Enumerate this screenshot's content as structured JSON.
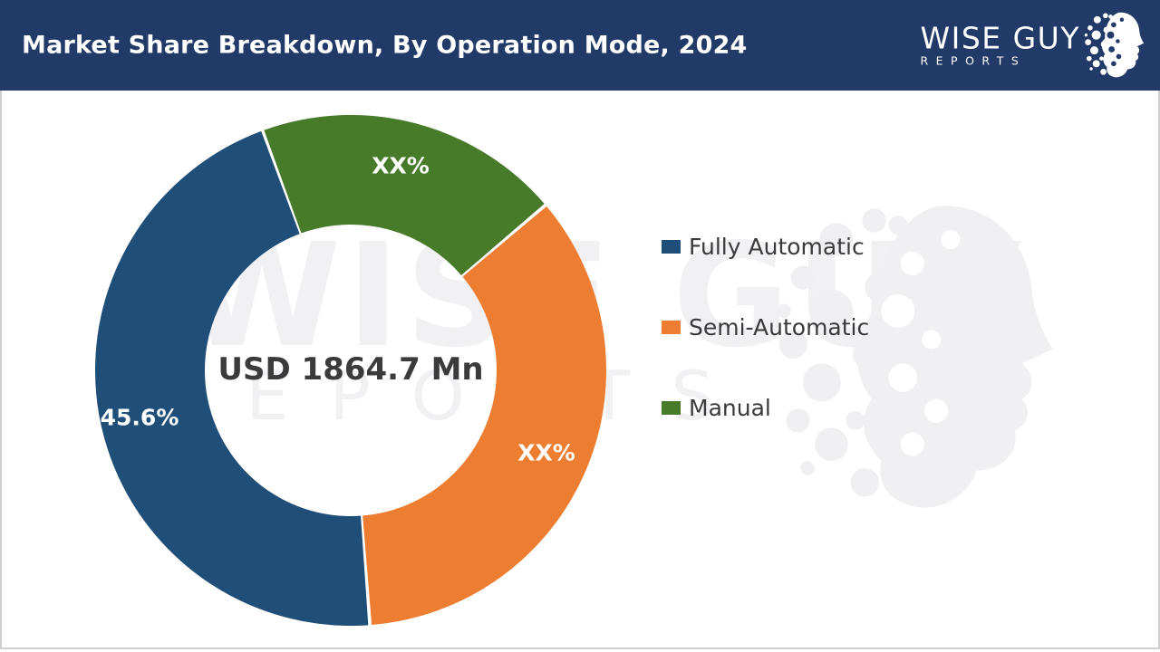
{
  "header": {
    "title": "Market Share Breakdown, By Operation Mode, 2024",
    "logo": {
      "primary": "WISE GUY",
      "secondary": "REPORTS"
    }
  },
  "background_watermark": {
    "primary": "WISE GUY",
    "secondary": "REPORTS"
  },
  "chart_data": {
    "type": "pie",
    "donut": true,
    "title": "Market Share Breakdown, By Operation Mode, 2024",
    "center_label": "USD 1864.7 Mn",
    "categories": [
      "Fully Automatic",
      "Semi-Automatic",
      "Manual"
    ],
    "values": [
      45.6,
      35.0,
      19.4
    ],
    "displayed_slice_labels": [
      "45.6%",
      "XX%",
      "XX%"
    ],
    "colors": [
      "#1F4E79",
      "#ED7D31",
      "#477B2A"
    ],
    "legend_position": "right",
    "start_angle_top_deg": -20.2,
    "donut_hole_ratio": 0.57,
    "slices": [
      {
        "name": "Manual",
        "value_pct": 19.4,
        "displayed_label": "XX%",
        "color": "#477B2A"
      },
      {
        "name": "Semi-Automatic",
        "value_pct": 35.0,
        "displayed_label": "XX%",
        "color": "#ED7D31"
      },
      {
        "name": "Fully Automatic",
        "value_pct": 45.6,
        "displayed_label": "45.6%",
        "color": "#1F4E79"
      }
    ]
  },
  "legend": {
    "items": [
      {
        "label": "Fully Automatic",
        "color": "#1F4E79"
      },
      {
        "label": "Semi-Automatic",
        "color": "#ED7D31"
      },
      {
        "label": "Manual",
        "color": "#477B2A"
      }
    ]
  }
}
